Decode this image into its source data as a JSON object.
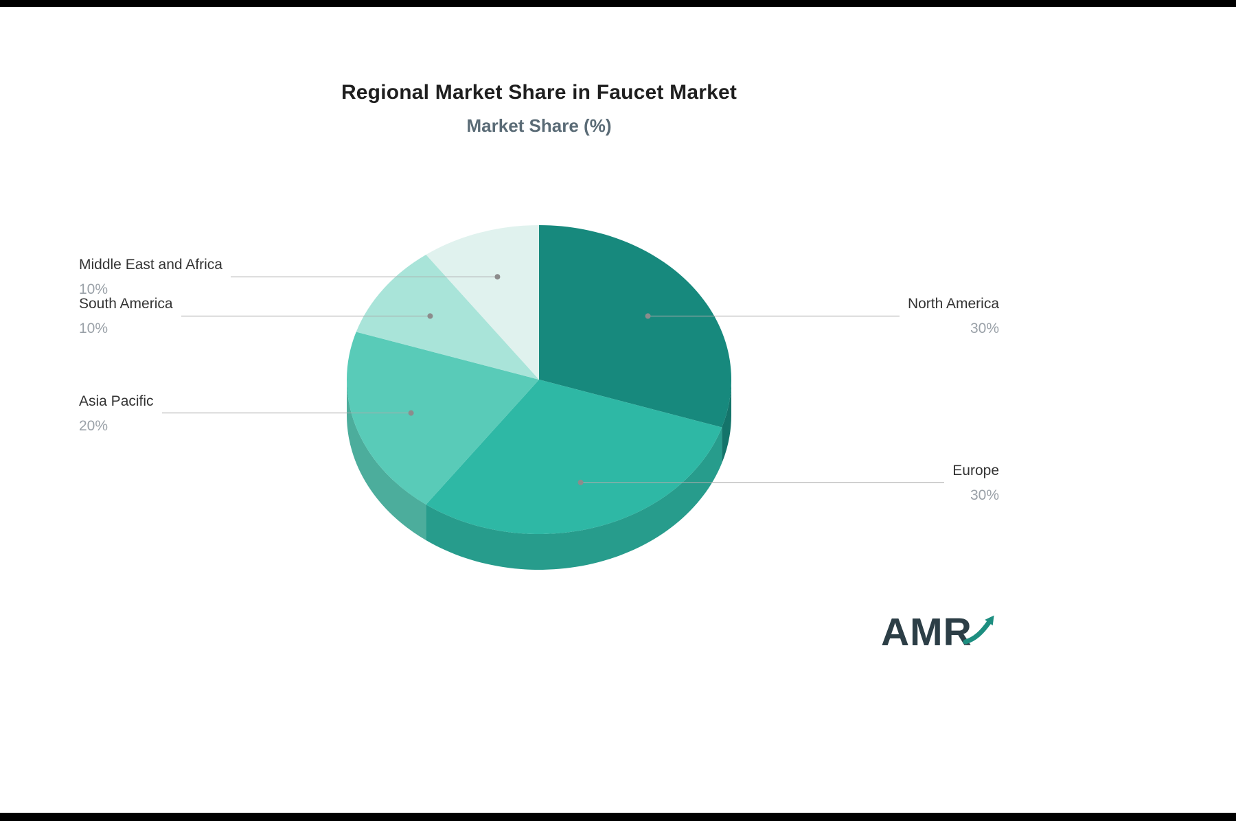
{
  "chart_data": {
    "type": "pie",
    "style": "3d",
    "title": "Regional Market Share in Faucet Market",
    "subtitle": "Market Share (%)",
    "unit": "%",
    "direction": "clockwise",
    "start_angle": "12 o'clock",
    "labels": [
      "North America",
      "Europe",
      "Asia Pacific",
      "South America",
      "Middle East and Africa"
    ],
    "values": [
      30,
      30,
      20,
      10,
      10
    ],
    "colors": [
      "#17897d",
      "#2eb8a5",
      "#59cbb8",
      "#a9e4d9",
      "#e0f2ee"
    ]
  },
  "callouts": [
    {
      "label": "North America",
      "value": "30%",
      "side": "right"
    },
    {
      "label": "Europe",
      "value": "30%",
      "side": "right"
    },
    {
      "label": "Asia Pacific",
      "value": "20%",
      "side": "left"
    },
    {
      "label": "South America",
      "value": "10%",
      "side": "left"
    },
    {
      "label": "Middle East and Africa",
      "value": "10%",
      "side": "left"
    }
  ],
  "branding": {
    "logo_text": "AMR",
    "logo_color": "#2c3e46",
    "arrow_color": "#1d8e80"
  }
}
